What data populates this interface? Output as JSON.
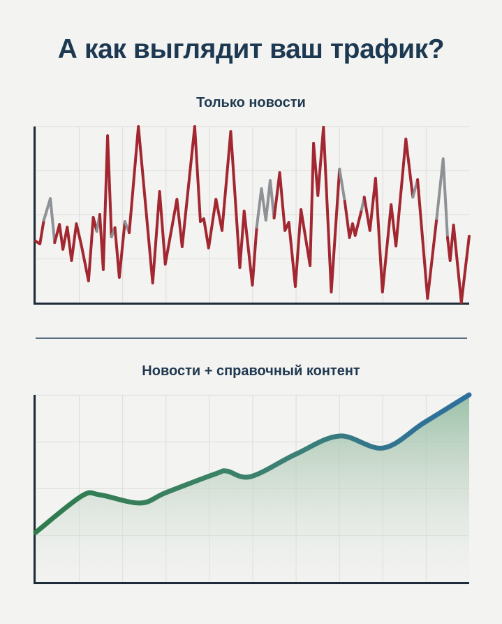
{
  "page": {
    "title": "А как выглядит ваш трафик?"
  },
  "colors": {
    "background": "#f3f3f1",
    "title_text": "#1d3952",
    "subtitle_text": "#203950",
    "axis": "#1e2b39",
    "grid": "#dbdcd8",
    "divider": "#5b6e80",
    "news_line_red": "#a22730",
    "news_line_gray": "#8e9196",
    "growth_line_gradient": [
      [
        "0",
        "#2f7b4e"
      ],
      [
        "0.4",
        "#3b8264"
      ],
      [
        "0.62",
        "#3b7f78"
      ],
      [
        "0.8",
        "#33748e"
      ],
      [
        "1",
        "#2d6f9e"
      ]
    ],
    "growth_fill_top": "rgba(150,190,163,0.95)",
    "growth_fill_mid": "rgba(195,213,199,0.6)",
    "growth_fill_bottom": "rgba(237,240,237,0.18)"
  },
  "chart_data": [
    {
      "id": "news-only",
      "type": "line",
      "title": "Только новости",
      "xlabel": "",
      "ylabel": "",
      "x_range": [
        0,
        100
      ],
      "y_range": [
        0,
        100
      ],
      "grid": {
        "shown": true,
        "v_divisions": 10,
        "h_divisions": 4
      },
      "legend": null,
      "point_format": "[x, y, segment_color_key] where omitted key = 'r'",
      "segment_color_keys": {
        "r": "news_line_red",
        "g": "news_line_gray"
      },
      "series": [
        {
          "name": "spiky-news-traffic",
          "points": [
            [
              0,
              34.9
            ],
            [
              1,
              33.3
            ],
            [
              1.9,
              46.8,
              "g"
            ],
            [
              3.4,
              59.1,
              "g"
            ],
            [
              4.4,
              34.1,
              "g"
            ],
            [
              5.5,
              44.4
            ],
            [
              6.3,
              30.2
            ],
            [
              7.3,
              42.9
            ],
            [
              8.3,
              23.8
            ],
            [
              9.4,
              44.8
            ],
            [
              10.6,
              32.1
            ],
            [
              12.2,
              12.3
            ],
            [
              13.3,
              48.4
            ],
            [
              14.1,
              40.5,
              "g"
            ],
            [
              14.8,
              50,
              "g"
            ],
            [
              15.6,
              18.7
            ],
            [
              16.6,
              94.8
            ],
            [
              17.5,
              37.3,
              "g"
            ],
            [
              18.3,
              42.5,
              "g"
            ],
            [
              19.3,
              14.3
            ],
            [
              20.6,
              46,
              "g"
            ],
            [
              21.6,
              39.7,
              "g"
            ],
            [
              23.7,
              100
            ],
            [
              27,
              11.1
            ],
            [
              28.6,
              63.1
            ],
            [
              29.9,
              21.8
            ],
            [
              32.6,
              58.7
            ],
            [
              33.8,
              31.7
            ],
            [
              36.7,
              100
            ],
            [
              38,
              46
            ],
            [
              38.8,
              47.6
            ],
            [
              39.9,
              31
            ],
            [
              41.6,
              58.7
            ],
            [
              43,
              40.9
            ],
            [
              45,
              97.2
            ],
            [
              47.1,
              19.8
            ],
            [
              48.1,
              52
            ],
            [
              50,
              9.9
            ],
            [
              51,
              42.9,
              "g"
            ],
            [
              52.1,
              64.7,
              "g"
            ],
            [
              53.1,
              46.8,
              "g"
            ],
            [
              54.1,
              69.4,
              "g"
            ],
            [
              55,
              48,
              "g"
            ],
            [
              56.3,
              73.8
            ],
            [
              57.5,
              40.9
            ],
            [
              58.4,
              45.6
            ],
            [
              59.9,
              9.1
            ],
            [
              61.2,
              52.8
            ],
            [
              63.3,
              21
            ],
            [
              64.1,
              90.5
            ],
            [
              65.1,
              60.7
            ],
            [
              66.4,
              99.6
            ],
            [
              68.2,
              6
            ],
            [
              70.1,
              75.8,
              "g"
            ],
            [
              71.3,
              57.5,
              "g"
            ],
            [
              72.4,
              36.9
            ],
            [
              73.1,
              44.8
            ],
            [
              73.7,
              38.1
            ],
            [
              75.2,
              52.8,
              "g"
            ],
            [
              75.8,
              59.9,
              "g"
            ],
            [
              77.1,
              40.9
            ],
            [
              78.4,
              70.6
            ],
            [
              80,
              6
            ],
            [
              82,
              55.6
            ],
            [
              83.1,
              32.1
            ],
            [
              85.4,
              92.9
            ],
            [
              87,
              59.9,
              "g"
            ],
            [
              88.1,
              69.8,
              "g"
            ],
            [
              90.4,
              2.4
            ],
            [
              92.5,
              47.6,
              "g"
            ],
            [
              94,
              81.7,
              "g"
            ],
            [
              95,
              36.9,
              "g"
            ],
            [
              95.6,
              23.8
            ],
            [
              96.4,
              44
            ],
            [
              98.2,
              0
            ],
            [
              100,
              37.7
            ]
          ]
        }
      ]
    },
    {
      "id": "news-plus-reference",
      "type": "area",
      "title": "Новости + справочный контент",
      "xlabel": "",
      "ylabel": "",
      "x_range": [
        0,
        100
      ],
      "y_range": [
        0,
        100
      ],
      "grid": {
        "shown": true,
        "v_divisions": 10,
        "h_divisions": 4
      },
      "legend": null,
      "series": [
        {
          "name": "smooth-growing-traffic",
          "points": [
            [
              0,
              26.5
            ],
            [
              10.6,
              45.9
            ],
            [
              14.8,
              46.6
            ],
            [
              24.1,
              42.2
            ],
            [
              30.1,
              47.8
            ],
            [
              41.5,
              57.8
            ],
            [
              44.1,
              59.3
            ],
            [
              49.6,
              56.3
            ],
            [
              60,
              68.3
            ],
            [
              70.1,
              78
            ],
            [
              80.2,
              71.6
            ],
            [
              89.6,
              85.1
            ],
            [
              100,
              100
            ]
          ]
        }
      ]
    }
  ]
}
